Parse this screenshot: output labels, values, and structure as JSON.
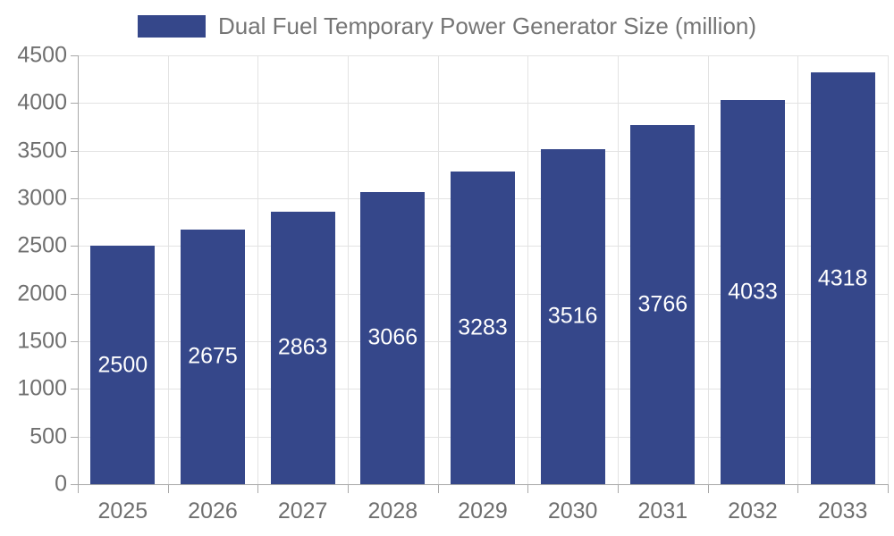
{
  "legend": {
    "label": "Dual Fuel Temporary Power Generator Size (million)",
    "swatch_color": "#35478A"
  },
  "chart_data": {
    "type": "bar",
    "title": "Dual Fuel Temporary Power Generator Size (million)",
    "categories": [
      "2025",
      "2026",
      "2027",
      "2028",
      "2029",
      "2030",
      "2031",
      "2032",
      "2033"
    ],
    "values": [
      2500,
      2675,
      2863,
      3066,
      3283,
      3516,
      3766,
      4033,
      4318
    ],
    "xlabel": "",
    "ylabel": "",
    "ylim": [
      0,
      4500
    ],
    "yticks": [
      0,
      500,
      1000,
      1500,
      2000,
      2500,
      3000,
      3500,
      4000,
      4500
    ],
    "grid": true,
    "legend_position": "top",
    "bar_color": "#35478A",
    "bar_label_color": "#ffffff",
    "axis_text_color": "#6f6f6f",
    "gridline_color": "#e3e3e3",
    "axis_line_color": "#a8a8a8"
  }
}
